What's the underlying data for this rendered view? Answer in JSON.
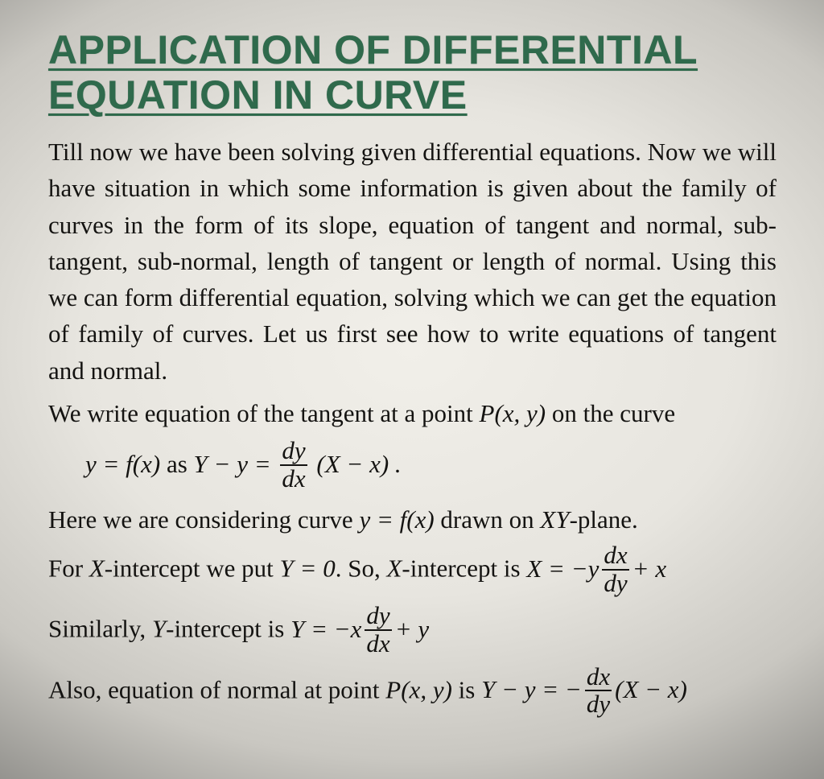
{
  "heading_line1": "APPLICATION OF DIFFERENTIAL",
  "heading_line2": "EQUATION IN CURVE",
  "para1": "Till now we have been solving given differential equations. Now we will have situation in which some information is given about the family of curves in the form of its slope, equation of tangent and normal, sub-tangent, sub-normal, length of tangent or length of normal. Using this we can form differential equation, solving which we can get the equation of family of curves. Let us first see how to write equations of tangent and normal.",
  "para2_a": "We write equation of the tangent at a point ",
  "para2_point": "P(x, y)",
  "para2_b": " on the curve",
  "eq1_lhs_a": "y = f(x)",
  "eq1_as": " as ",
  "eq1_Yy": "Y − y = ",
  "eq1_num": "dy",
  "eq1_den": "dx",
  "eq1_tail": " (X − x) .",
  "para3_a": "Here we are considering curve ",
  "para3_curve": "y = f(x)",
  "para3_b": " drawn on ",
  "para3_plane": "XY",
  "para3_c": "-plane.",
  "para4_a": "For ",
  "para4_X": "X",
  "para4_b": "-intercept we put ",
  "para4_Y0": "Y = 0",
  "para4_c": ". So, ",
  "para4_X2": "X",
  "para4_d": "-intercept is ",
  "para4_eq_lhs": "X = −y",
  "para4_eq_num": "dx",
  "para4_eq_den": "dy",
  "para4_eq_tail": "+ x",
  "para5_a": "Similarly, ",
  "para5_Y": "Y",
  "para5_b": "-intercept is ",
  "para5_eq_lhs": "Y = −x",
  "para5_eq_num": "dy",
  "para5_eq_den": "dx",
  "para5_eq_tail": "+ y",
  "para6_a": "Also, equation of normal at point ",
  "para6_point": "P(x, y)",
  "para6_b": " is ",
  "para6_eq_lhs": "Y − y = −",
  "para6_eq_num": "dx",
  "para6_eq_den": "dy",
  "para6_eq_tail": "(X − x)",
  "colors": {
    "heading": "#2f6a4c",
    "text": "#141311",
    "paper_light": "#f1efe9",
    "paper_mid": "#e7e5df",
    "paper_dark": "#8b8a86"
  },
  "fonts": {
    "heading_size_pt": 38,
    "body_size_pt": 23
  }
}
